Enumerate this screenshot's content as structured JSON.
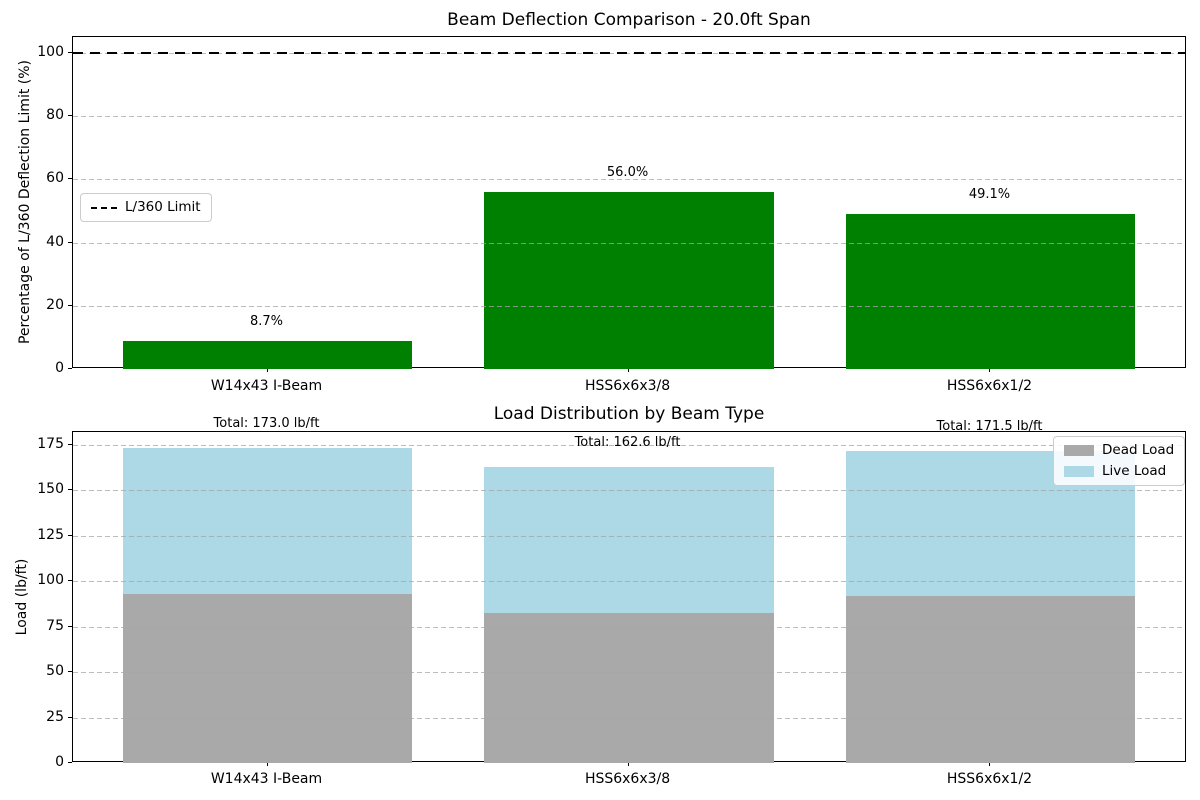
{
  "chart_data": [
    {
      "type": "bar",
      "title": "Beam Deflection Comparison - 20.0ft Span",
      "ylabel": "Percentage of L/360 Deflection Limit (%)",
      "xlabel": "",
      "categories": [
        "W14x43 I-Beam",
        "HSS6x6x3/8",
        "HSS6x6x1/2"
      ],
      "values": [
        8.7,
        56.0,
        49.1
      ],
      "value_labels": [
        "8.7%",
        "56.0%",
        "49.1%"
      ],
      "bar_color": "#008000",
      "ylim": [
        0,
        105
      ],
      "yticks": [
        0,
        20,
        40,
        60,
        80,
        100
      ],
      "grid": "dashed-horizontal",
      "limit_line": {
        "value": 100,
        "style": "dashed",
        "color": "#000000",
        "legend_label": "L/360 Limit"
      },
      "legend_position": "center-left"
    },
    {
      "type": "stacked-bar",
      "title": "Load Distribution by Beam Type",
      "ylabel": "Load (lb/ft)",
      "xlabel": "",
      "categories": [
        "W14x43 I-Beam",
        "HSS6x6x3/8",
        "HSS6x6x1/2"
      ],
      "series": [
        {
          "name": "Dead Load",
          "color": "#a9a9a9",
          "values": [
            93.0,
            82.6,
            91.5
          ]
        },
        {
          "name": "Live Load",
          "color": "#add8e6",
          "values": [
            80.0,
            80.0,
            80.0
          ]
        }
      ],
      "totals": [
        173.0,
        162.6,
        171.5
      ],
      "total_labels": [
        "Total: 173.0 lb/ft",
        "Total: 162.6 lb/ft",
        "Total: 171.5 lb/ft"
      ],
      "ylim": [
        0,
        181.9
      ],
      "yticks": [
        0,
        25,
        50,
        75,
        100,
        125,
        150,
        175
      ],
      "grid": "dashed-horizontal",
      "legend_position": "top-right"
    }
  ]
}
